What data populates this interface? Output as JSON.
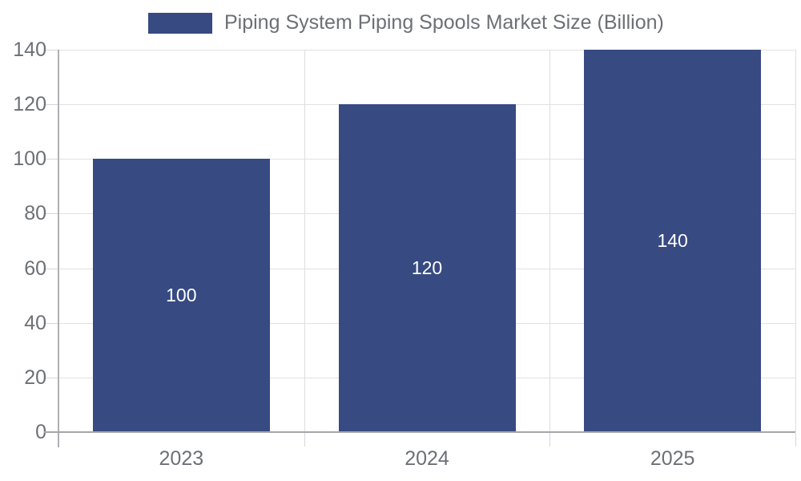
{
  "legend": {
    "label": "Piping System Piping Spools Market Size (Billion)"
  },
  "chart_data": {
    "type": "bar",
    "title": "Piping System Piping Spools Market Size (Billion)",
    "categories": [
      "2023",
      "2024",
      "2025"
    ],
    "values": [
      100,
      120,
      140
    ],
    "bar_labels": [
      "100",
      "120",
      "140"
    ],
    "xlabel": "",
    "ylabel": "",
    "ylim": [
      0,
      140
    ],
    "yticks": [
      0,
      20,
      40,
      60,
      80,
      100,
      120,
      140
    ],
    "grid": true,
    "legend_position": "upper center",
    "bar_color": "#374a82",
    "bar_label_color": "#ffffff"
  }
}
